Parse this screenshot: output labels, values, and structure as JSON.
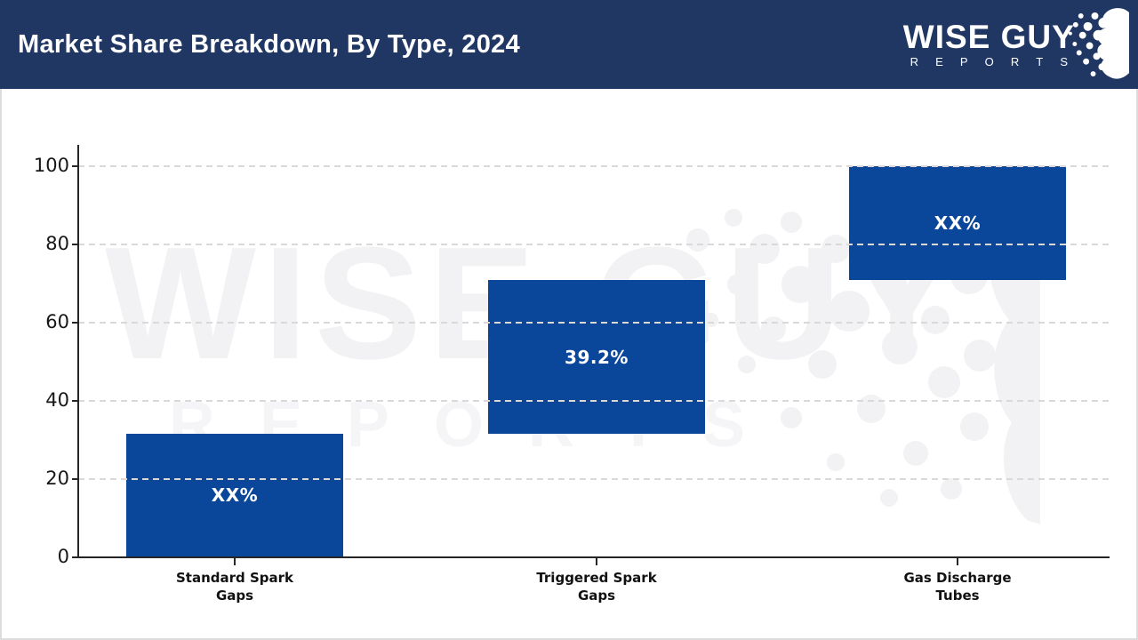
{
  "header": {
    "title": "Market Share Breakdown, By Type, 2024",
    "bg_color": "#203764",
    "logo": {
      "line1": "WISE GUY",
      "line2": "REPORTS"
    }
  },
  "watermark": {
    "line1": "WISE GUY",
    "line2": "REPORTS",
    "color": "#f2f2f4"
  },
  "chart_data": {
    "type": "bar",
    "subtype": "stacked-floating-segments",
    "title": "Market Share Breakdown, By Type, 2024",
    "categories": [
      "Standard Spark Gaps",
      "Triggered Spark Gaps",
      "Gas Discharge Tubes"
    ],
    "category_label_lines": [
      [
        "Standard Spark",
        "Gaps"
      ],
      [
        "Triggered Spark",
        "Gaps"
      ],
      [
        "Gas Discharge",
        "Tubes"
      ]
    ],
    "values": [
      31.6,
      39.2,
      29.2
    ],
    "segment_bounds": [
      [
        0,
        31.6
      ],
      [
        31.6,
        70.8
      ],
      [
        70.8,
        100
      ]
    ],
    "value_labels": [
      "XX%",
      "39.2%",
      "XX%"
    ],
    "yticks": [
      0,
      20,
      40,
      60,
      80,
      100
    ],
    "ylim": [
      0,
      105.5
    ],
    "xlabel": "",
    "ylabel": "",
    "bar_color": "#0A479B",
    "grid": true,
    "grid_style": "dashed",
    "grid_color": "#d9d9d9",
    "grid_above_bars": true,
    "axis_color": "#262626",
    "legend": false
  }
}
